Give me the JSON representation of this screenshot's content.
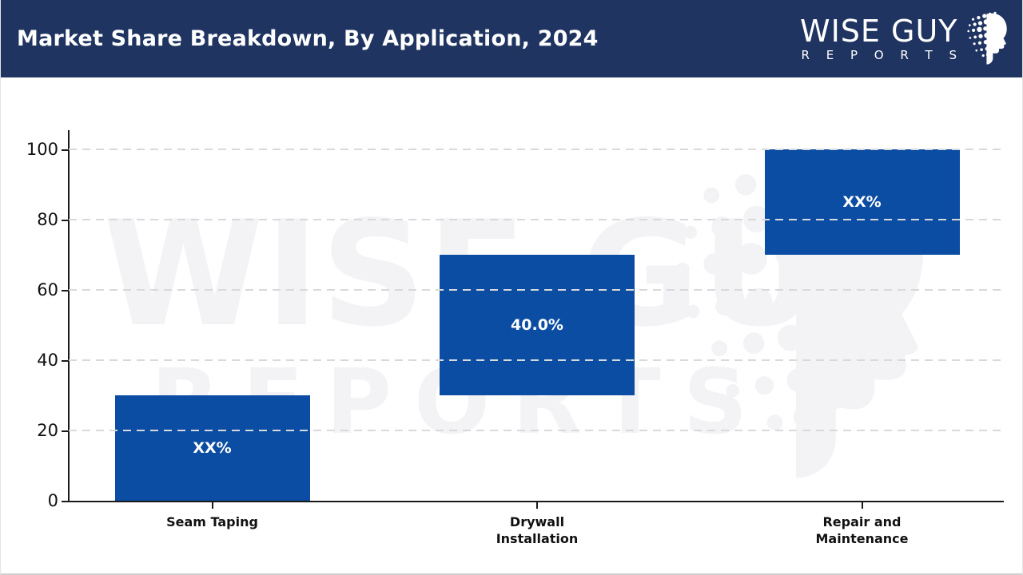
{
  "header": {
    "title": "Market Share Breakdown, By Application, 2024",
    "logo_line1": "WISE GUY",
    "logo_line2": "R E P O R T S"
  },
  "watermark": {
    "line1": "WISE GUY",
    "line2": "REPORTS"
  },
  "colors": {
    "header_bg": "#1F3460",
    "bar": "#0B4DA2",
    "bar_label": "#ffffff",
    "axis": "#1a1a1a",
    "gridline": "#d8d8d8",
    "watermark": "#f3f3f6"
  },
  "chart_data": {
    "type": "bar",
    "variant": "floating-segment-waterfall",
    "title": "Market Share Breakdown, By Application, 2024",
    "categories": [
      "Seam Taping",
      "Drywall\nInstallation",
      "Repair and\nMaintenance"
    ],
    "segments": [
      {
        "category": "Seam Taping",
        "start": 0,
        "end": 30,
        "label": "XX%"
      },
      {
        "category": "Drywall Installation",
        "start": 30,
        "end": 70,
        "label": "40.0%"
      },
      {
        "category": "Repair and Maintenance",
        "start": 70,
        "end": 100,
        "label": "XX%"
      }
    ],
    "yticks": [
      0,
      20,
      40,
      60,
      80,
      100
    ],
    "ylim": [
      0,
      105
    ],
    "xlabel": "",
    "ylabel": "",
    "legend": null,
    "grid": {
      "axis": "y",
      "style": "dashed",
      "drawn_over_bars": true
    }
  }
}
